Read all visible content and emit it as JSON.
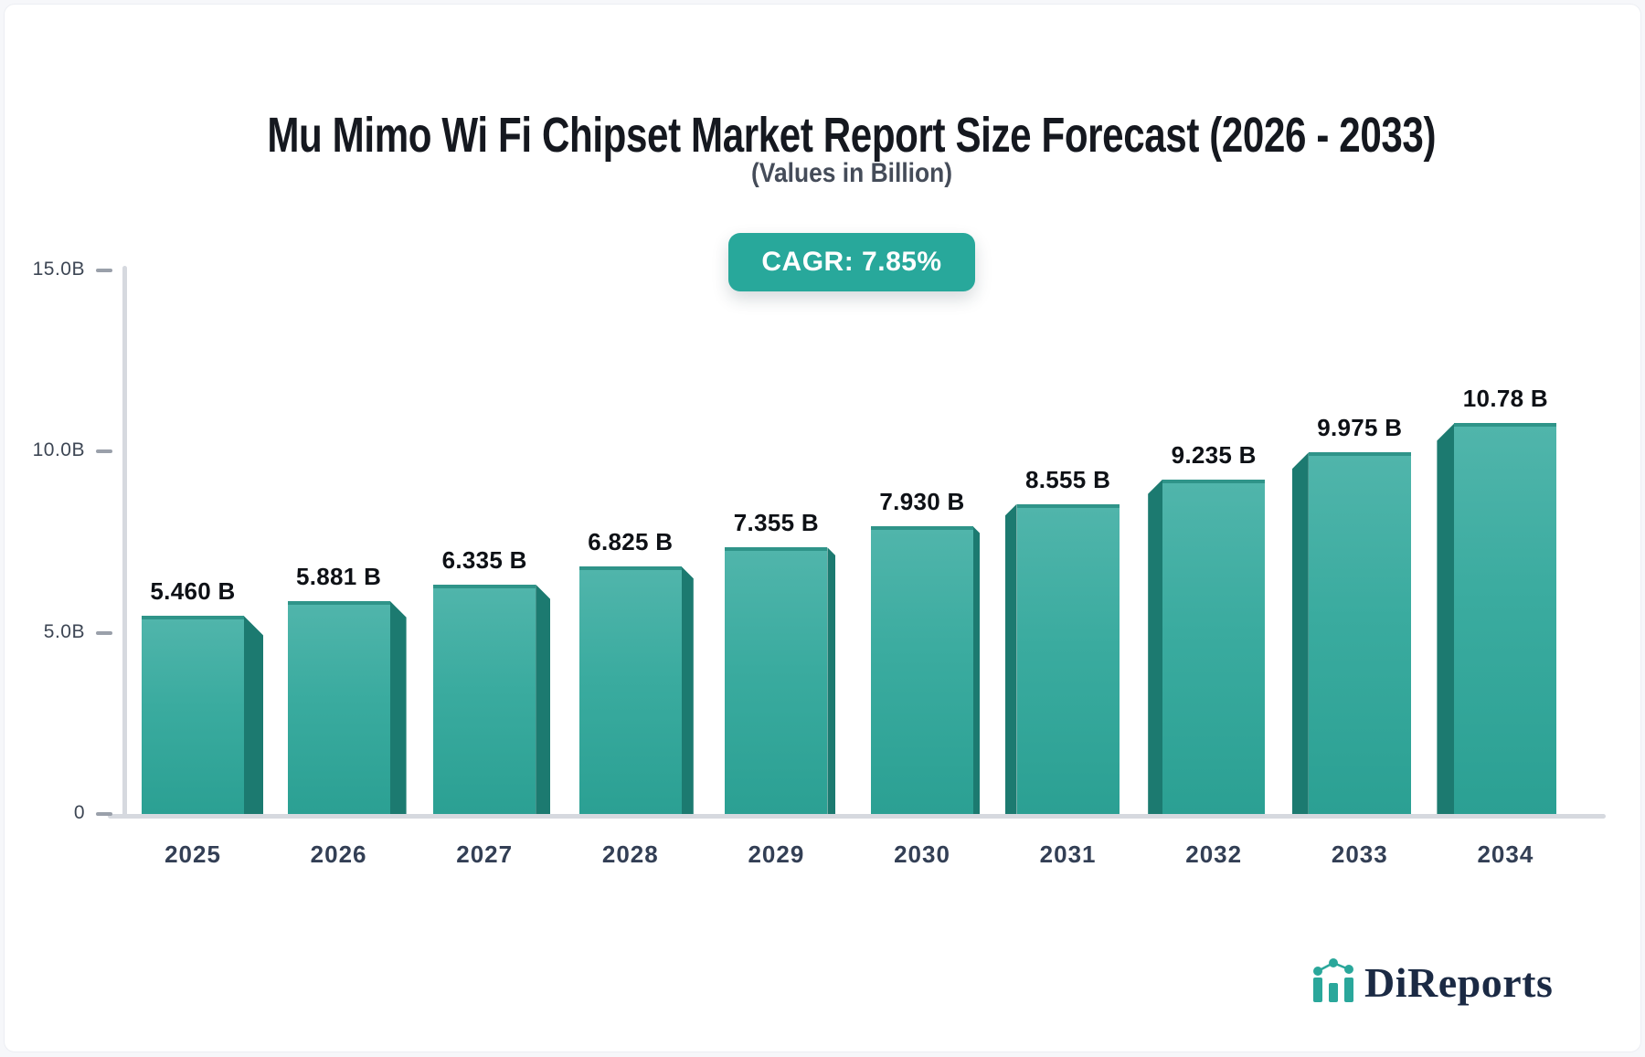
{
  "chart_data": {
    "type": "bar",
    "title": "Mu Mimo Wi Fi Chipset Market Report Size Forecast (2026 - 2033)",
    "subtitle": "(Values in Billion)",
    "cagr_badge": "CAGR: 7.85%",
    "categories": [
      "2025",
      "2026",
      "2027",
      "2028",
      "2029",
      "2030",
      "2031",
      "2032",
      "2033",
      "2034"
    ],
    "values": [
      5.46,
      5.881,
      6.335,
      6.825,
      7.355,
      7.93,
      8.555,
      9.235,
      9.975,
      10.78
    ],
    "bar_labels": [
      "5.460 B",
      "5.881 B",
      "6.335 B",
      "6.825 B",
      "7.355 B",
      "7.930 B",
      "8.555 B",
      "9.235 B",
      "9.975 B",
      "10.78 B"
    ],
    "y_axis": {
      "ticks": [
        {
          "label": "15.0B",
          "value": 15
        },
        {
          "label": "10.0B",
          "value": 10
        },
        {
          "label": "5.0B",
          "value": 5
        },
        {
          "label": "0",
          "value": 0
        }
      ],
      "range": [
        0,
        15
      ]
    },
    "grid": false,
    "legend": false,
    "bar_style": "3d-perspective",
    "colors": {
      "bar_top": "#50b5ab",
      "bar_bottom": "#2ba093",
      "bar_side": "#1c7a70",
      "bar_top_edge": "#2f9489",
      "badge_background": "#28a89b",
      "badge_text": "#ffffff",
      "axis": "#d6d9df",
      "tick_dash": "#9aa0aa",
      "y_label_text": "#3d4654",
      "x_label_text": "#333f55",
      "value_label_text": "#0e1116",
      "title_text": "#15181f",
      "subtitle_text": "#454c59"
    }
  },
  "logo": {
    "text": "DiReports",
    "icon": "mini-bar-line-chart-icon",
    "text_color": "#1b2a44",
    "accent_color": "#2aa79b"
  }
}
